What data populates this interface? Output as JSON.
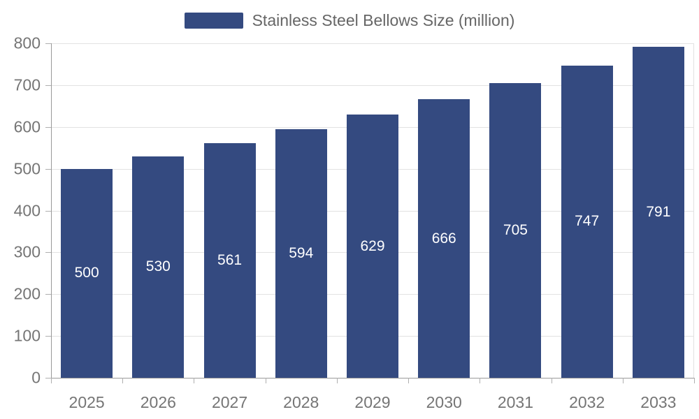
{
  "chart_data": {
    "type": "bar",
    "title": "",
    "legend": "Stainless Steel Bellows Size (million)",
    "categories": [
      "2025",
      "2026",
      "2027",
      "2028",
      "2029",
      "2030",
      "2031",
      "2032",
      "2033"
    ],
    "series": [
      {
        "name": "Stainless Steel Bellows Size (million)",
        "values": [
          500,
          530,
          561,
          594,
          629,
          666,
          705,
          747,
          791
        ]
      }
    ],
    "bar_labels": [
      "500",
      "530",
      "561",
      "594",
      "629",
      "666",
      "705",
      "747",
      "791"
    ],
    "xlabel": "",
    "ylabel": "",
    "ylim": [
      0,
      800
    ],
    "ytick_step": 100,
    "ytick_labels": [
      "0",
      "100",
      "200",
      "300",
      "400",
      "500",
      "600",
      "700",
      "800"
    ],
    "grid": true,
    "legend_position": "top"
  },
  "colors": {
    "bar": "#344A80",
    "bar_label_text": "#FFFFFF",
    "axis_text": "#757575",
    "legend_text": "#666666",
    "grid_line": "#E2E2E2",
    "frame_line": "#E2E2E2",
    "axis_line": "#999999",
    "tick_line": "#AFAFAF",
    "background": "#FFFFFF"
  }
}
